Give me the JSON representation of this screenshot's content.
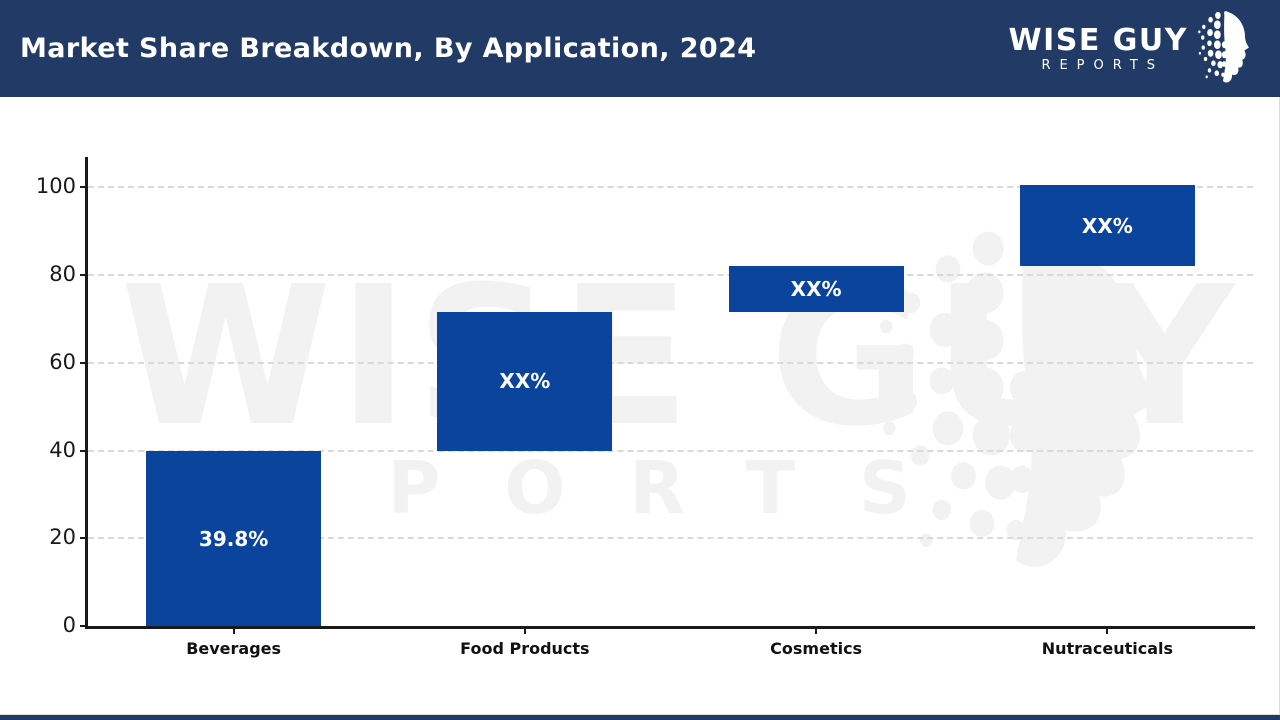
{
  "header": {
    "title": "Market Share Breakdown, By Application, 2024",
    "logo": {
      "line1": "WISE GUY",
      "line2": "REPORTS"
    }
  },
  "watermark": {
    "line1": "WISE GUY",
    "line2": "REPORTS"
  },
  "colors": {
    "header_bg": "#213a66",
    "title_text": "#ffffff",
    "bar": "#0a449c",
    "bar_label": "#ffffff",
    "grid": "#d9d9d9",
    "axis": "#1a1a1a",
    "watermark": "#f2f2f2"
  },
  "chart_data": {
    "type": "bar",
    "subtype": "waterfall",
    "title": "Market Share Breakdown, By Application, 2024",
    "categories": [
      "Beverages",
      "Food Products",
      "Cosmetics",
      "Nutraceuticals"
    ],
    "segments": [
      {
        "category": "Beverages",
        "start": 0,
        "end": 39.8,
        "label": "39.8%"
      },
      {
        "category": "Food Products",
        "start": 40,
        "end": 71.5,
        "label": "XX%"
      },
      {
        "category": "Cosmetics",
        "start": 71.5,
        "end": 82,
        "label": "XX%"
      },
      {
        "category": "Nutraceuticals",
        "start": 82,
        "end": 100.5,
        "label": "XX%"
      }
    ],
    "yticks": [
      0,
      20,
      40,
      60,
      80,
      100
    ],
    "ylim": [
      0,
      106.5
    ],
    "xlabel": "",
    "ylabel": "",
    "value_unit": "%",
    "grid": "horizontal-dashed",
    "legend": "none"
  }
}
